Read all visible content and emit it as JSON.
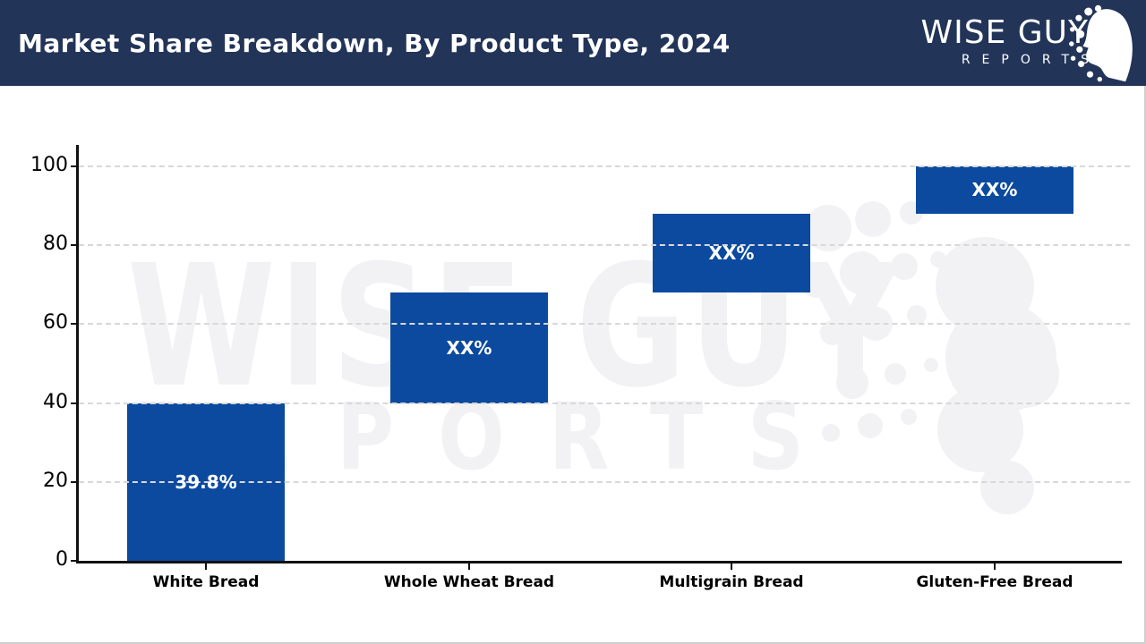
{
  "header": {
    "title": "Market Share Breakdown, By Product Type, 2024",
    "brand": {
      "name_line": "WISE GUY",
      "sub_line": "REPORTS"
    }
  },
  "watermark": {
    "line1": "WISE GUY",
    "line2": "REPORTS"
  },
  "chart_data": {
    "type": "bar",
    "subtype": "waterfall-stacked-percentage",
    "title": "Market Share Breakdown, By Product Type, 2024",
    "categories": [
      "White Bread",
      "Whole Wheat Bread",
      "Multigrain Bread",
      "Gluten-Free Bread"
    ],
    "segments": [
      {
        "category": "White Bread",
        "start": 0,
        "end": 39.8,
        "label": "39.8%"
      },
      {
        "category": "Whole Wheat Bread",
        "start": 39.8,
        "end": 68,
        "label": "XX%"
      },
      {
        "category": "Multigrain Bread",
        "start": 68,
        "end": 88,
        "label": "XX%"
      },
      {
        "category": "Gluten-Free Bread",
        "start": 88,
        "end": 100,
        "label": "XX%"
      }
    ],
    "values_pct": [
      39.8,
      28.2,
      20,
      12
    ],
    "yticks": [
      0,
      20,
      40,
      60,
      80,
      100
    ],
    "ylim": [
      0,
      105
    ],
    "xlabel": "",
    "ylabel": "",
    "grid": "horizontal-dashed, drawn over bars",
    "legend": "none"
  },
  "colors": {
    "header_bg": "#223458",
    "bar": "#0b4a9e",
    "bar_label": "#ffffff",
    "grid": "#d8d8d8",
    "axis": "#111111",
    "watermark": "#f2f2f5",
    "page_border": "#cfcfcf"
  }
}
